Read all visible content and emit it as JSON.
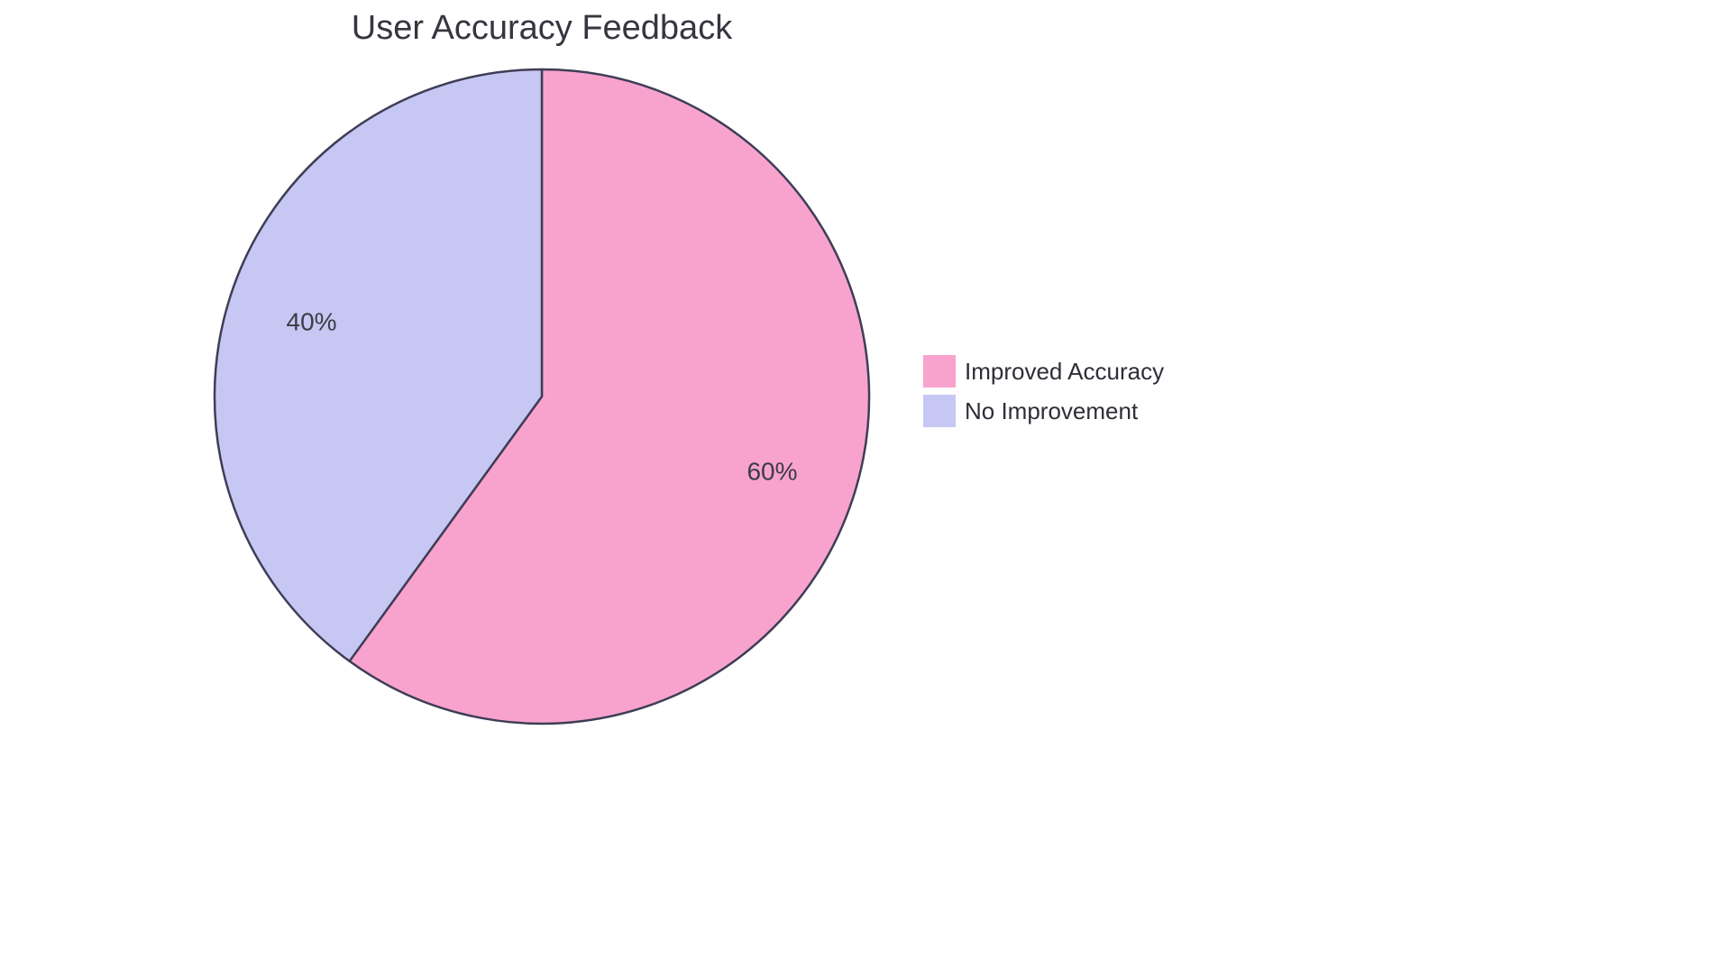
{
  "chart_data": {
    "type": "pie",
    "title": "User Accuracy Feedback",
    "legend_position": "right",
    "stroke_color": "#3F3D56",
    "slices": [
      {
        "label": "Improved Accuracy",
        "value": 60,
        "pct_label": "60%",
        "color": "#F8A3CE"
      },
      {
        "label": "No Improvement",
        "value": 40,
        "pct_label": "40%",
        "color": "#C7C7F4"
      }
    ]
  }
}
